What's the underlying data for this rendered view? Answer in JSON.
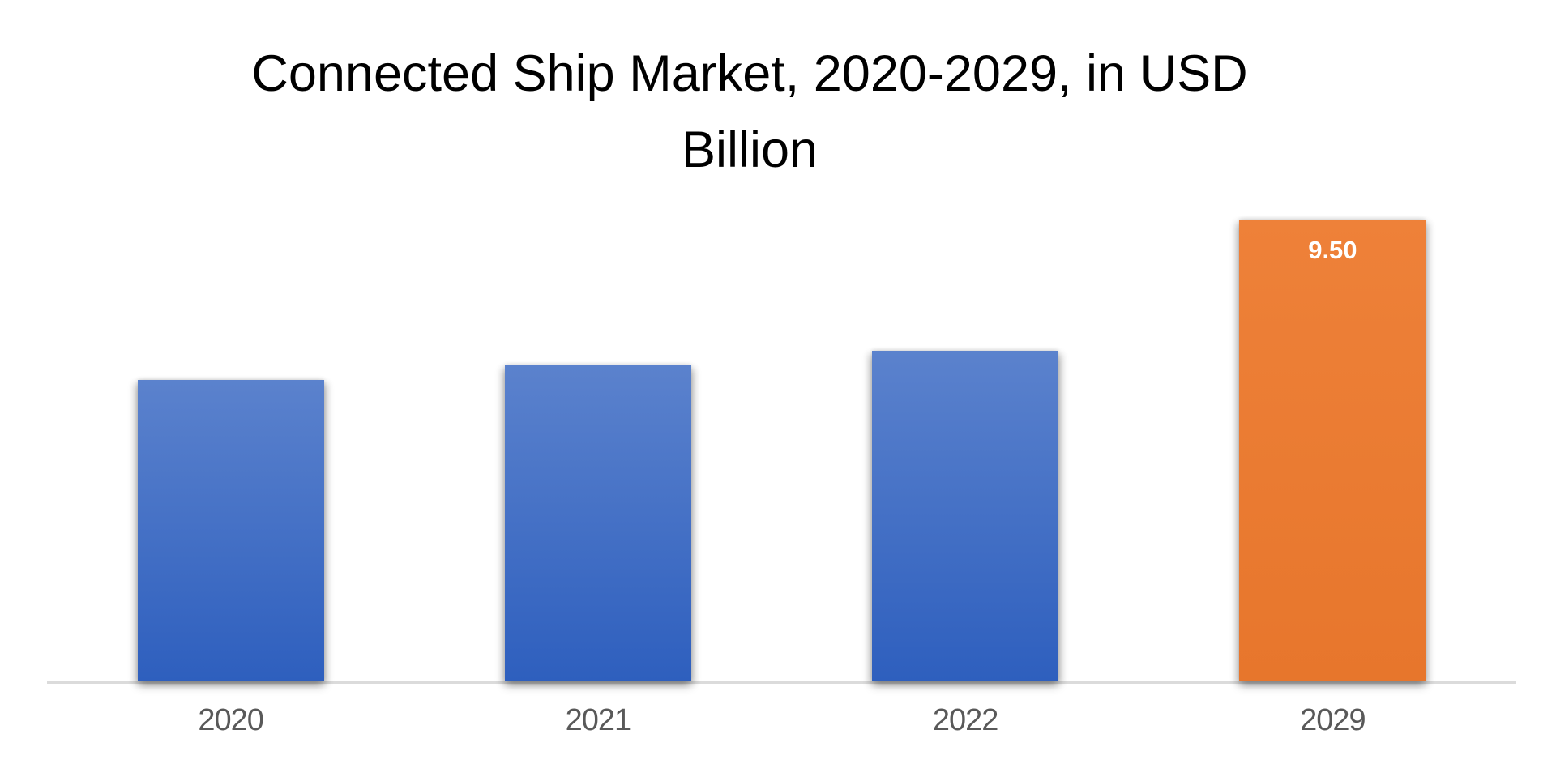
{
  "chart_data": {
    "type": "bar",
    "title": "Connected Ship Market, 2020-2029, in USD Billion",
    "title_lines": [
      "Connected Ship Market, 2020-2029, in USD",
      "Billion"
    ],
    "categories": [
      "2020",
      "2021",
      "2022",
      "2029"
    ],
    "values": [
      6.2,
      6.5,
      6.8,
      9.5
    ],
    "value_labels": [
      "",
      "",
      "",
      "9.50"
    ],
    "xlabel": "",
    "ylabel": "",
    "ylim": [
      0,
      10
    ],
    "grid": false,
    "legend": "none",
    "y_axis_visible": false,
    "highlight_index": 3,
    "colors": {
      "bar_top": "#5B82CD",
      "bar_bottom": "#2E5FBE",
      "highlight_bar_top": "#EE8139",
      "highlight_bar_bottom": "#E7762C",
      "data_label_text": "#FFFFFF",
      "axis_line": "#DBDBDB",
      "tick_label": "#595959",
      "title_text": "#000000",
      "background": "#FFFFFF"
    }
  }
}
